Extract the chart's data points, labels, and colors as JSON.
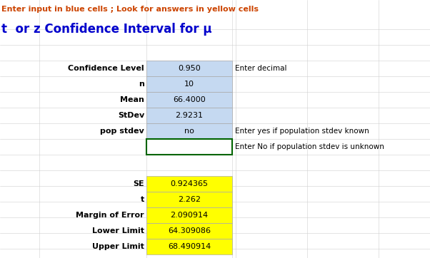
{
  "header_text": "Enter input in blue cells ; Look for answers in yellow cells",
  "header_color": "#CC4400",
  "title_text": "t  or z Confidence Interval for μ",
  "title_color": "#0000CC",
  "input_rows": [
    {
      "label": "Confidence Level",
      "value": "0.950",
      "note": "Enter decimal",
      "cell_color": "#C5D9F1"
    },
    {
      "label": "n",
      "value": "10",
      "note": "",
      "cell_color": "#C5D9F1"
    },
    {
      "label": "Mean",
      "value": "66.4000",
      "note": "",
      "cell_color": "#C5D9F1"
    },
    {
      "label": "StDev",
      "value": "2.9231",
      "note": "",
      "cell_color": "#C5D9F1"
    },
    {
      "label": "pop stdev",
      "value": "no",
      "note": "Enter yes if population stdev known",
      "cell_color": "#C5D9F1"
    },
    {
      "label": "",
      "value": "",
      "note": "Enter No if population stdev is unknown",
      "cell_color": "#FFFFFF"
    }
  ],
  "output_rows": [
    {
      "label": "SE",
      "value": "0.924365",
      "cell_color": "#FFFF00"
    },
    {
      "label": "t",
      "value": "2.262",
      "cell_color": "#FFFF00"
    },
    {
      "label": "Margin of Error",
      "value": "2.090914",
      "cell_color": "#FFFF00"
    },
    {
      "label": "Lower Limit",
      "value": "64.309086",
      "cell_color": "#FFFF00"
    },
    {
      "label": "Upper Limit",
      "value": "68.490914",
      "cell_color": "#FFFF00"
    }
  ],
  "green_border_color": "#006400",
  "fig_bg": "#FFFFFF",
  "grid_line_color": "#D0D0D0"
}
